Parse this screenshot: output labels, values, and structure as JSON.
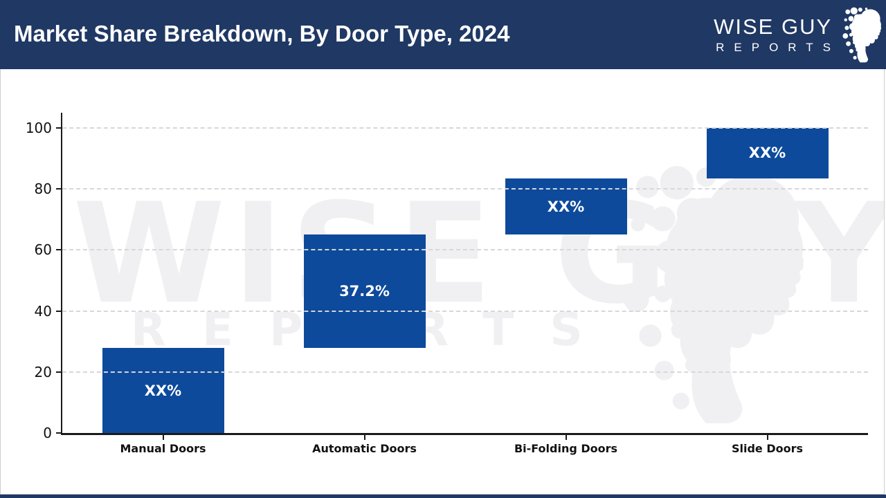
{
  "header": {
    "title": "Market Share Breakdown, By Door Type, 2024",
    "logo": {
      "line1": "WISE GUY",
      "line2": "REPORTS"
    }
  },
  "watermark": {
    "line1": "WISE GUY",
    "line2": "REPORTS"
  },
  "colors": {
    "header_bg": "#1f3864",
    "footer_bg": "#1f3864",
    "bar": "#0d4a9b",
    "grid": "#d7d7d7",
    "axis": "#1a1a1a",
    "watermark": "#f0f0f2",
    "title_text": "#ffffff",
    "bar_label_text": "#ffffff"
  },
  "chart_data": {
    "type": "waterfall",
    "title": "Market Share Breakdown, By Door Type, 2024",
    "categories": [
      "Manual Doors",
      "Automatic Doors",
      "Bi-Folding Doors",
      "Slide Doors"
    ],
    "segments": [
      {
        "category": "Manual Doors",
        "start": 0,
        "end": 27.8,
        "label": "XX%"
      },
      {
        "category": "Automatic Doors",
        "start": 27.8,
        "end": 65,
        "label": "37.2%",
        "value": 37.2
      },
      {
        "category": "Bi-Folding Doors",
        "start": 65,
        "end": 83.5,
        "label": "XX%"
      },
      {
        "category": "Slide Doors",
        "start": 83.5,
        "end": 100,
        "label": "XX%"
      }
    ],
    "ylim": [
      0,
      100
    ],
    "yticks": [
      0,
      20,
      40,
      60,
      80,
      100
    ],
    "xlabel": "",
    "ylabel": "",
    "grid": "dashed-horizontal-on-top",
    "legend": "none"
  }
}
